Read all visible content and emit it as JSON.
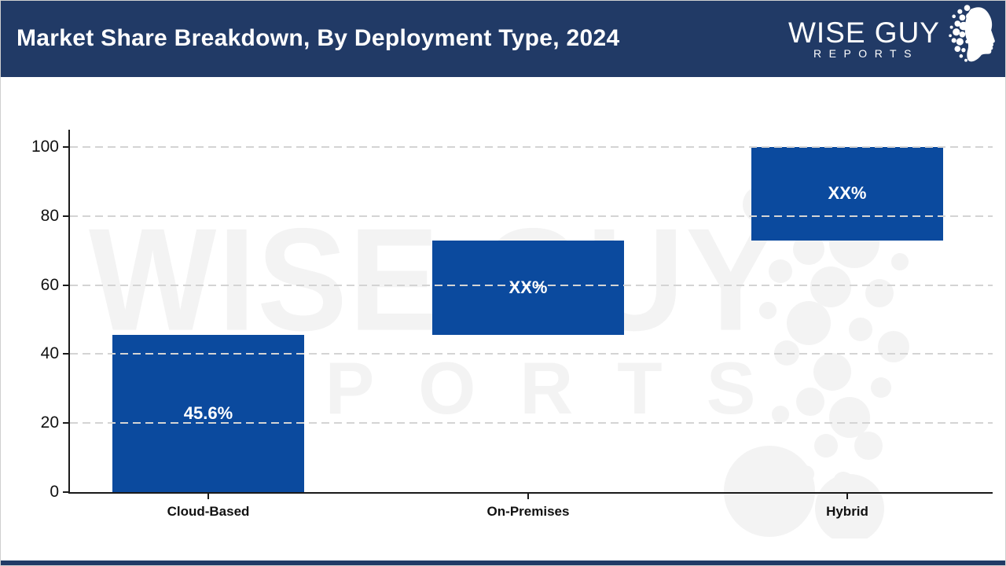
{
  "header": {
    "title": "Market Share Breakdown, By Deployment Type, 2024",
    "logo": {
      "line1": "WISE GUY",
      "line2": "REPORTS"
    }
  },
  "watermark": {
    "line1": "WISE GUY",
    "line2": "REPORTS"
  },
  "chart_data": {
    "type": "bar",
    "subtype": "floating-waterfall",
    "title": "Market Share Breakdown, By Deployment Type, 2024",
    "categories": [
      "Cloud-Based",
      "On-Premises",
      "Hybrid"
    ],
    "series": [
      {
        "name": "Cloud-Based",
        "start": 0,
        "end": 45.6,
        "label": "45.6%"
      },
      {
        "name": "On-Premises",
        "start": 45.6,
        "end": 73,
        "label": "XX%"
      },
      {
        "name": "Hybrid",
        "start": 73,
        "end": 100,
        "label": "XX%"
      }
    ],
    "xlabel": "",
    "ylabel": "",
    "yticks": [
      0,
      20,
      40,
      60,
      80,
      100
    ],
    "ylim": [
      0,
      105
    ],
    "grid": "horizontal-dashed",
    "legend": "none",
    "colors": {
      "bar": "#0b4a9e",
      "bar_label": "#ffffff",
      "axis": "#1a1a1a",
      "grid": "#d4d4d4",
      "header_bg": "#213a66",
      "header_text": "#ffffff",
      "watermark": "#f3f3f3"
    }
  }
}
